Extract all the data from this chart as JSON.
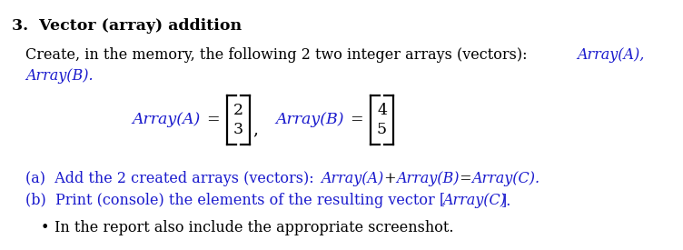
{
  "bg_color": "#ffffff",
  "text_color": "#000000",
  "blue_color": "#1a1acd",
  "title_bold": "3.  Vector (array) addition",
  "body1_normal": "Create, in the memory, the following 2 two integer arrays (vectors):  ",
  "body1_italic": "Array(A),",
  "body2_italic": "Array(B).",
  "arrayA_label": "Array(A)",
  "arrayA_vals": [
    "2",
    "3"
  ],
  "arrayB_label": "Array(B)",
  "arrayB_vals": [
    "4",
    "5"
  ],
  "parta_normal": "(a)  Add the 2 created arrays (vectors): ",
  "parta_italic1": "Array(A)",
  "parta_plus": " + ",
  "parta_italic2": "Array(B)",
  "parta_eq": " = ",
  "parta_italic3": "Array(C).",
  "partb_normal": "(b)  Print (console) the elements of the resulting vector [",
  "partb_italic": "Array(C)",
  "partb_close": "].",
  "bullet_text": "In the report also include the appropriate screenshot.",
  "fontsize": 11.5,
  "title_fontsize": 12.5
}
